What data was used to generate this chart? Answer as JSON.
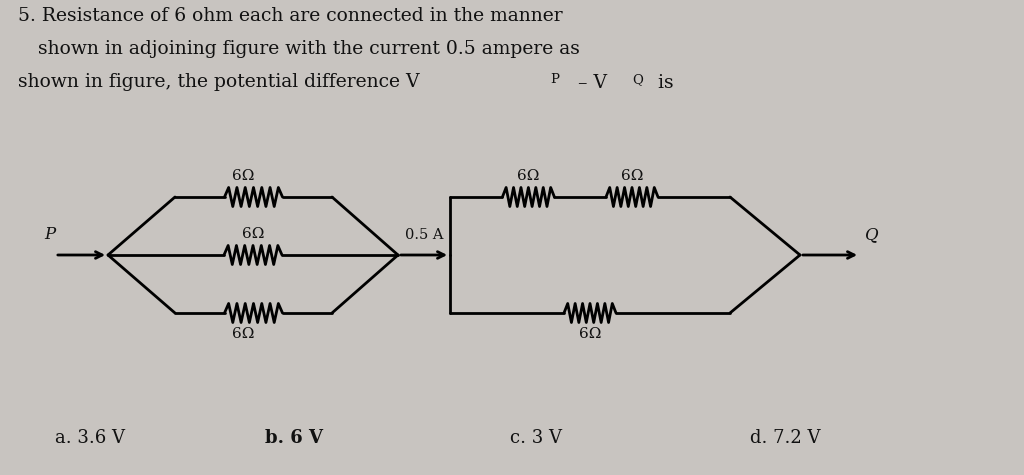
{
  "title_line1": "5. Resistance of 6 ohm each are connected in the manner",
  "title_line2": "shown in adjoining figure with the current 0.5 ampere as",
  "title_line3": "shown in figure, the potential difference V",
  "sub_P": "P",
  "dash": "–",
  "sub_V": "V",
  "sub_Q": "Q",
  "suffix_is": " is",
  "bg_color": "#c8c4c0",
  "text_color": "#111111",
  "options": [
    "a. 3.6 V",
    "b. 6 V",
    "c. 3 V",
    "d. 7.2 V"
  ],
  "resistor_label": "6Ω",
  "current_label": "0.5 A",
  "node_P": "P",
  "node_Q": "Q",
  "lw": 2.0,
  "fig_w": 10.24,
  "fig_h": 4.75
}
